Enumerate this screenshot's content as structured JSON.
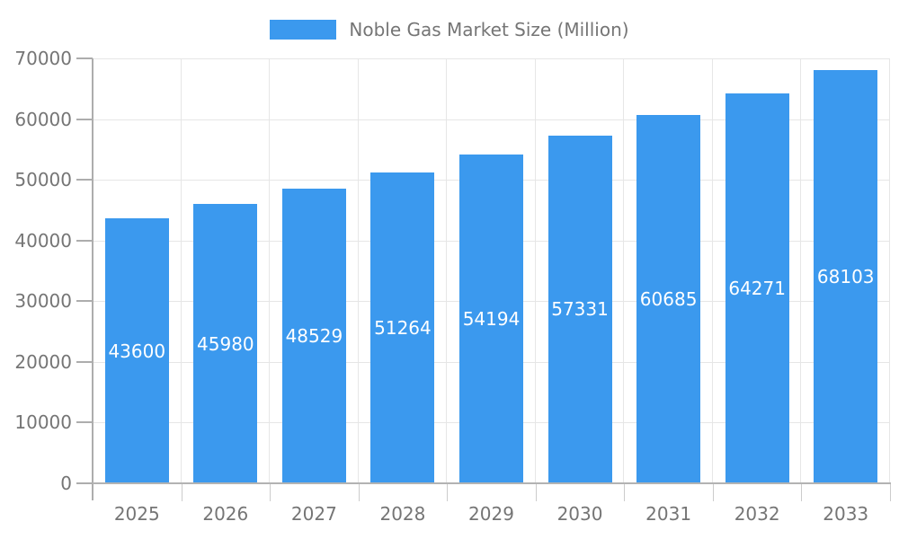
{
  "legend": {
    "label": "Noble Gas Market Size (Million)"
  },
  "chart_data": {
    "type": "bar",
    "title": "Noble Gas Market Size (Million)",
    "categories": [
      "2025",
      "2026",
      "2027",
      "2028",
      "2029",
      "2030",
      "2031",
      "2032",
      "2033"
    ],
    "series": [
      {
        "name": "Noble Gas Market Size (Million)",
        "values": [
          43600,
          45980,
          48529,
          51264,
          54194,
          57331,
          60685,
          64271,
          68103
        ]
      }
    ],
    "xlabel": "",
    "ylabel": "",
    "ylim": [
      0,
      70000
    ],
    "ytick_step": 10000,
    "ytick_labels": [
      "0",
      "10000",
      "20000",
      "30000",
      "40000",
      "50000",
      "60000",
      "70000"
    ],
    "grid": true,
    "legend_position": "top-center",
    "value_labels": "inside-center",
    "colors": {
      "bar": "#3b99ee",
      "grid": "#e6e6e6",
      "axis": "#adadad",
      "tick_mark_x": "#cccccc",
      "tick_text": "#757575",
      "value_label_text": "#ffffff",
      "background": "#ffffff"
    }
  }
}
